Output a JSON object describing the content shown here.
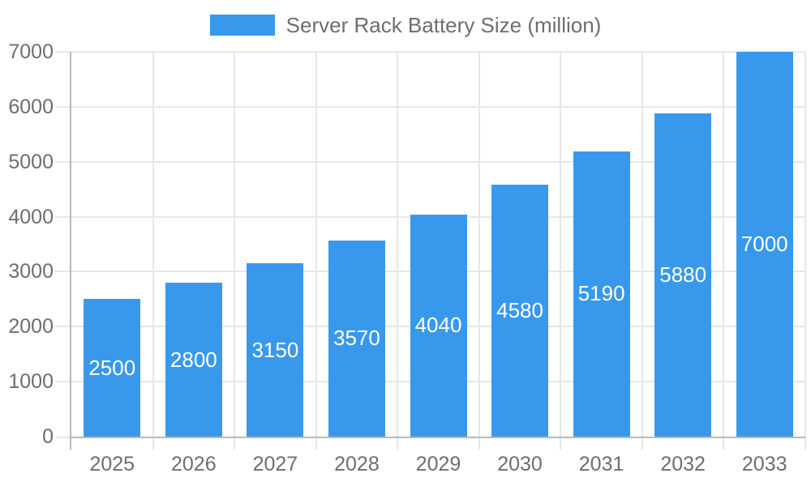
{
  "chart_data": {
    "type": "bar",
    "title": "Server Rack Battery Size (million)",
    "series_name": "Server Rack Battery Size (million)",
    "legend_position": "top",
    "categories": [
      "2025",
      "2026",
      "2027",
      "2028",
      "2029",
      "2030",
      "2031",
      "2032",
      "2033"
    ],
    "values": [
      2500,
      2800,
      3150,
      3570,
      4040,
      4580,
      5190,
      5880,
      7000
    ],
    "bar_value_labels": [
      "2500",
      "2800",
      "3150",
      "3570",
      "4040",
      "4580",
      "5190",
      "5880",
      "7000"
    ],
    "xlabel": "",
    "ylabel": "",
    "ylim": [
      0,
      7000
    ],
    "ytick_step": 1000,
    "yticks": [
      0,
      1000,
      2000,
      3000,
      4000,
      5000,
      6000,
      7000
    ],
    "ytick_labels": [
      "0",
      "1000",
      "2000",
      "3000",
      "4000",
      "5000",
      "6000",
      "7000"
    ],
    "grid": true,
    "colors": {
      "bar": "#3899ec",
      "bar_label": "#ffffff",
      "grid": "#e6e6e6",
      "axis": "#b9b9b9",
      "tick_label": "#6e6e6e",
      "legend_text": "#6e6e6e",
      "background": "#ffffff"
    }
  }
}
